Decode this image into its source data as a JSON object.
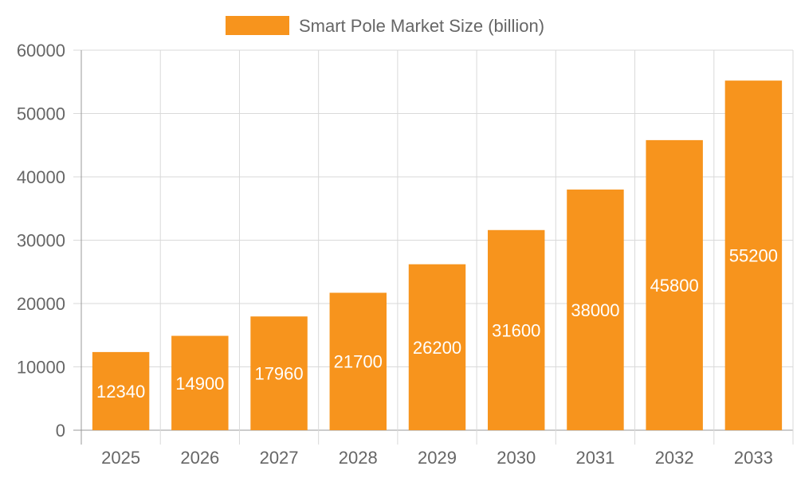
{
  "colors": {
    "bar": "#F7941D",
    "grid": "#d9d9d9",
    "axis": "#999999",
    "text": "#666666",
    "data_label": "#ffffff"
  },
  "chart_data": {
    "type": "bar",
    "title": "",
    "xlabel": "",
    "ylabel": "",
    "categories": [
      "2025",
      "2026",
      "2027",
      "2028",
      "2029",
      "2030",
      "2031",
      "2032",
      "2033"
    ],
    "series": [
      {
        "name": "Smart Pole Market Size (billion)",
        "values": [
          12340,
          14900,
          17960,
          21700,
          26200,
          31600,
          38000,
          45800,
          55200
        ]
      }
    ],
    "ylim": [
      0,
      60000
    ],
    "yticks": [
      0,
      10000,
      20000,
      30000,
      40000,
      50000,
      60000
    ],
    "grid": true,
    "legend_position": "top",
    "data_labels": true
  }
}
